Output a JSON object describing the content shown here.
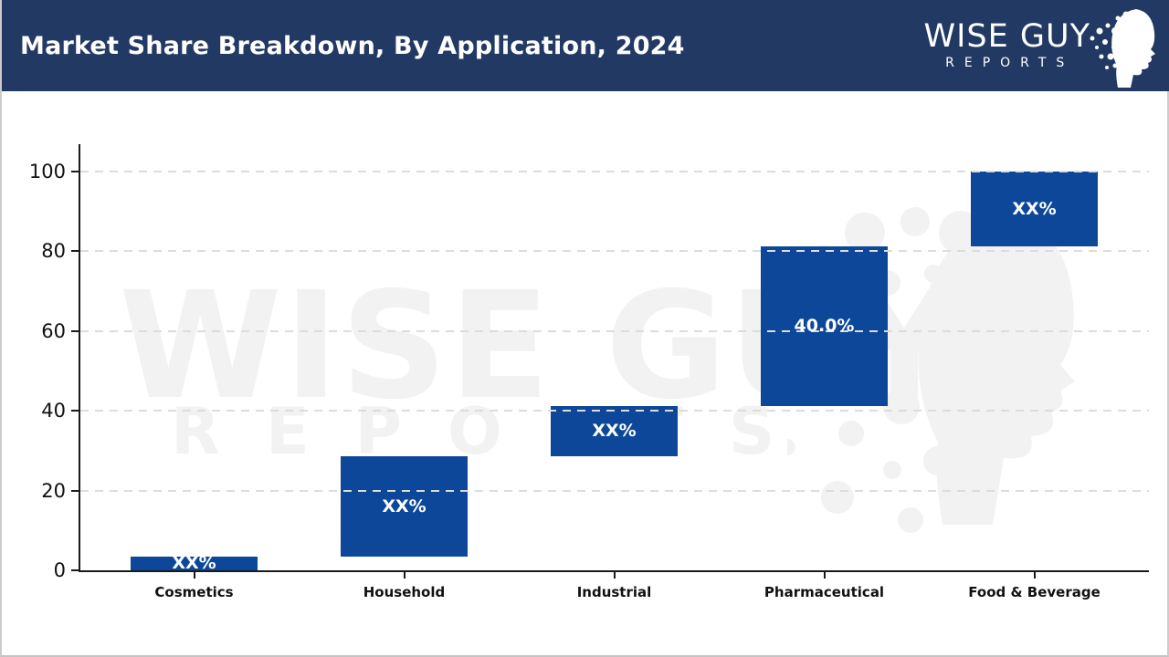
{
  "header": {
    "title": "Market Share Breakdown, By Application, 2024",
    "logo": {
      "line1": "WISE GUY",
      "line2": "REPORTS",
      "icon": "face-profile-dots-icon"
    }
  },
  "watermark": {
    "line1": "WISE GUY",
    "line2": "REPORTS",
    "icon": "face-profile-dots-icon"
  },
  "chart_data": {
    "type": "bar",
    "subtype": "waterfall",
    "title": "Market Share Breakdown, By Application, 2024",
    "categories": [
      "Cosmetics",
      "Household",
      "Industrial",
      "Pharmaceutical",
      "Food & Beverage"
    ],
    "segments": [
      {
        "category": "Cosmetics",
        "start": 0,
        "end": 3.5,
        "label": "XX%"
      },
      {
        "category": "Household",
        "start": 3.5,
        "end": 28.6,
        "label": "XX%"
      },
      {
        "category": "Industrial",
        "start": 28.6,
        "end": 41.2,
        "label": "XX%"
      },
      {
        "category": "Pharmaceutical",
        "start": 41.2,
        "end": 81.2,
        "label": "40.0%"
      },
      {
        "category": "Food & Beverage",
        "start": 81.2,
        "end": 100,
        "label": "XX%"
      }
    ],
    "yticks": [
      0,
      20,
      40,
      60,
      80,
      100
    ],
    "ylim": [
      0,
      108
    ],
    "xlabel": "",
    "ylabel": "",
    "grid": "horizontal-dashed-over-bars",
    "legend": "none",
    "colors": {
      "bar": "#0C479A",
      "header_background": "#223A63",
      "title_text": "#FFFFFF",
      "grid": "#DCDCDC",
      "axis": "#1A1A1A",
      "bar_label_text": "#FFFFFF",
      "watermark": "#F2F2F2"
    }
  }
}
